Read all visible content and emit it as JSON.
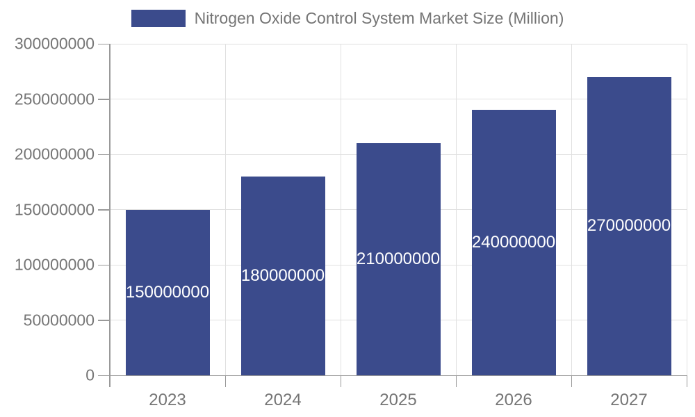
{
  "legend": {
    "label": "Nitrogen Oxide Control System Market Size (Million)"
  },
  "chart_data": {
    "type": "bar",
    "title": "Nitrogen Oxide Control System Market Size (Million)",
    "categories": [
      "2023",
      "2024",
      "2025",
      "2026",
      "2027"
    ],
    "values": [
      150000000,
      180000000,
      210000000,
      240000000,
      270000000
    ],
    "bar_labels": [
      "150000000",
      "180000000",
      "210000000",
      "240000000",
      "270000000"
    ],
    "xlabel": "",
    "ylabel": "",
    "ylim": [
      0,
      300000000
    ],
    "yticks": [
      0,
      50000000,
      100000000,
      150000000,
      200000000,
      250000000,
      300000000
    ],
    "ytick_labels": [
      "0",
      "50000000",
      "100000000",
      "150000000",
      "200000000",
      "250000000",
      "300000000"
    ],
    "grid": true,
    "legend_position": "top-center",
    "value_labels": "inside-center-white",
    "colors": {
      "bar": "#3B4B8C",
      "grid": "#E0E0E0",
      "axis": "#999999",
      "tick_label": "#757575",
      "legend_text": "#757575",
      "bar_label": "#FFFFFF",
      "background": "#FFFFFF"
    }
  }
}
